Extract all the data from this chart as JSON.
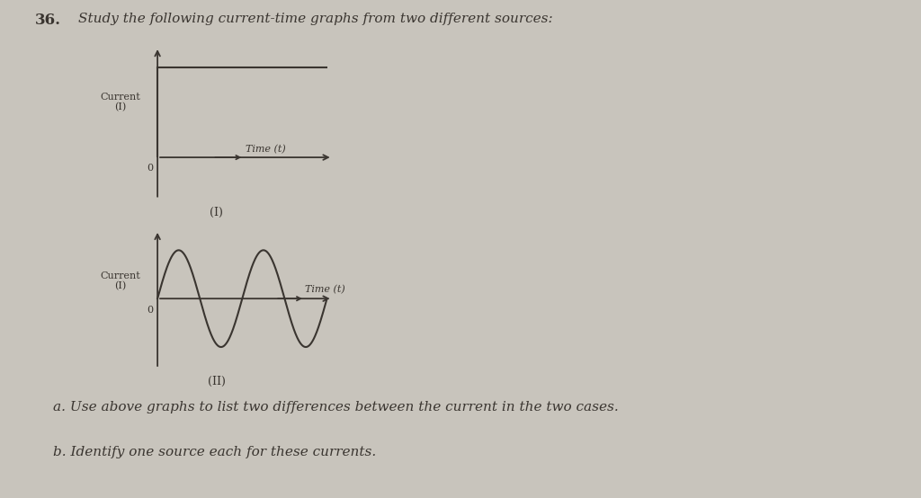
{
  "background_color": "#c8c4bc",
  "question_number": "36.",
  "question_text": "Study the following current-time graphs from two different sources:",
  "graph1_ylabel": "Current\n(I)",
  "graph1_xlabel": "Time (t)",
  "graph1_label": "(I)",
  "graph2_ylabel": "Current\n(I)",
  "graph2_xlabel": "Time (t)",
  "graph2_label": "(II)",
  "part_a": "a. Use above graphs to list two differences between the current in the two cases.",
  "part_b": "b. Identify one source each for these currents.",
  "text_color": "#3a3530",
  "line_color": "#3a3530",
  "font_size_question": 11,
  "font_size_label": 8,
  "font_size_graph_label": 9
}
